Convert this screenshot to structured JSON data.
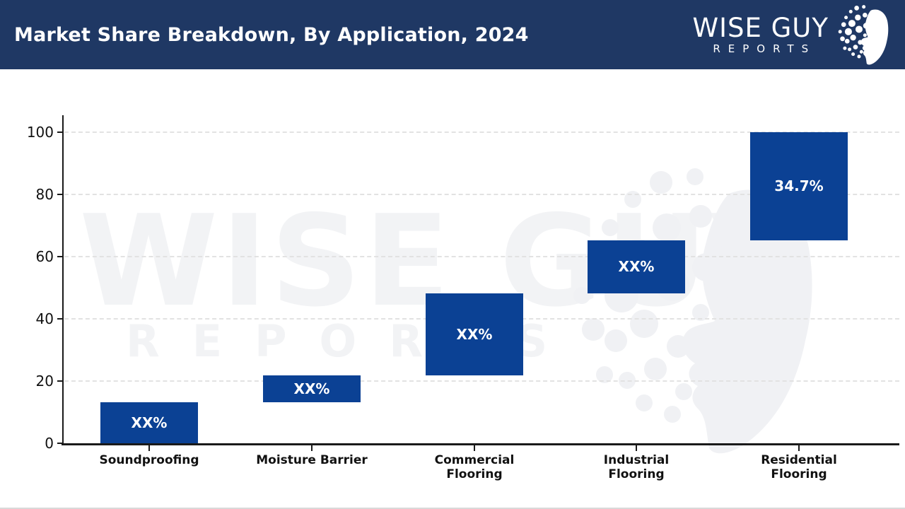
{
  "header": {
    "title": "Market Share Breakdown, By Application, 2024",
    "logo": {
      "line1": "WISE GUY",
      "line2": "REPORTS"
    }
  },
  "watermark": {
    "line1": "WISE GUY",
    "line2": "REPORTS"
  },
  "chart_data": {
    "type": "bar",
    "subtype": "waterfall-segment-bars",
    "title": "Market Share Breakdown, By Application, 2024",
    "categories": [
      "Soundproofing",
      "Moisture Barrier",
      "Commercial Flooring",
      "Industrial Flooring",
      "Residential Flooring"
    ],
    "categories_display": [
      [
        "Soundproofing"
      ],
      [
        "Moisture Barrier"
      ],
      [
        "Commercial",
        "Flooring"
      ],
      [
        "Industrial",
        "Flooring"
      ],
      [
        "Residential",
        "Flooring"
      ]
    ],
    "series": [
      {
        "name": "Market share segment (%)",
        "segment_start": [
          0,
          13.2,
          21.8,
          48.2,
          65.3
        ],
        "segment_end": [
          13.2,
          21.8,
          48.2,
          65.3,
          100
        ]
      }
    ],
    "bar_labels": [
      "XX%",
      "XX%",
      "XX%",
      "XX%",
      "34.7%"
    ],
    "xlabel": "",
    "ylabel": "",
    "ylim": [
      0,
      100
    ],
    "yticks": [
      0,
      20,
      40,
      60,
      80,
      100
    ],
    "grid": "horizontal dashed",
    "legend": "none",
    "bar_color": "#0b4194",
    "bar_label_color": "#ffffff"
  },
  "colors": {
    "header_bg": "#1f3864",
    "bar_blue": "#0b4194",
    "watermark_gray": "#f2f3f5",
    "gridline_gray": "#e2e2e2",
    "axis_black": "#1a1a1a"
  }
}
